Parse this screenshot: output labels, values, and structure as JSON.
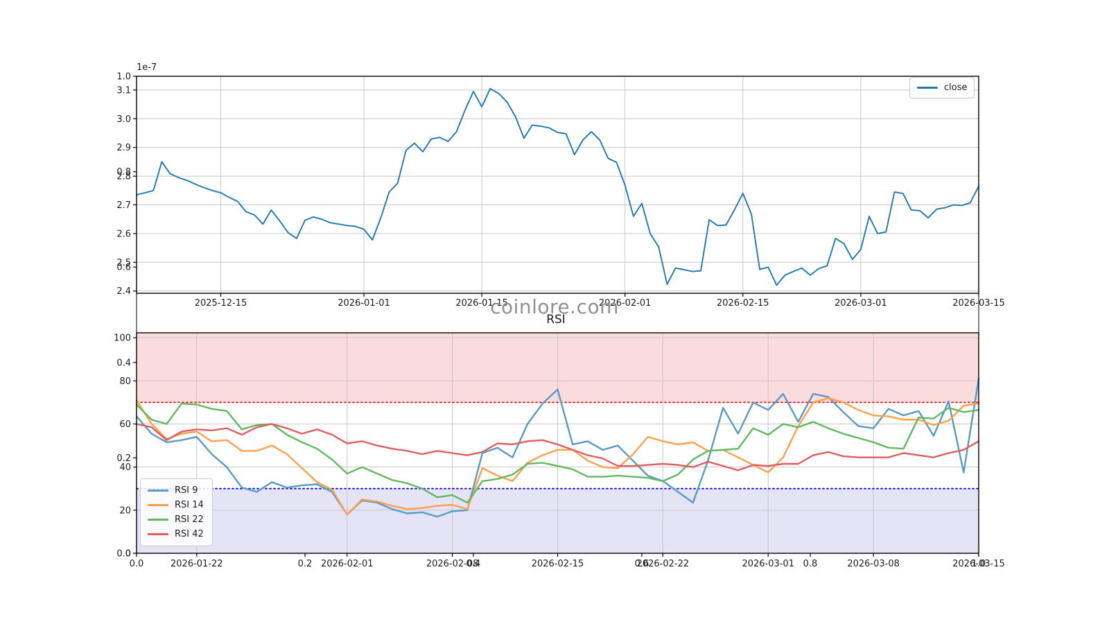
{
  "watermark": "coinlore.com",
  "overlay_axis": {
    "x_ticks": [
      "0.0",
      "0.2",
      "0.4",
      "0.6",
      "0.8",
      "1.0"
    ],
    "y_ticks": [
      "1.0",
      "0.8",
      "0.6",
      "0.4",
      "0.2",
      "0.0"
    ]
  },
  "colors": {
    "grid": "#c6c6c6",
    "spine": "#000000",
    "text": "#1a1a1a",
    "watermark": "#909090"
  },
  "chart_data": [
    {
      "id": "price",
      "type": "line",
      "y_offset_label": "1e-7",
      "legend_position": "upper right",
      "grid": true,
      "x_start_date": "2025-12-05",
      "x_ticks": [
        {
          "label": "2025-12-15",
          "day": 10
        },
        {
          "label": "2026-01-01",
          "day": 27
        },
        {
          "label": "2026-01-15",
          "day": 41
        },
        {
          "label": "2026-02-01",
          "day": 58
        },
        {
          "label": "2026-02-15",
          "day": 72
        },
        {
          "label": "2026-03-01",
          "day": 86
        },
        {
          "label": "2026-03-15",
          "day": 100
        }
      ],
      "y_ticks": [
        "2.4",
        "2.5",
        "2.6",
        "2.7",
        "2.8",
        "2.9",
        "3.0",
        "3.1"
      ],
      "ylim": [
        2.392,
        3.148
      ],
      "series": [
        {
          "name": "close",
          "color": "#1f77b4",
          "values": [
            2.735,
            2.742,
            2.75,
            2.85,
            2.808,
            2.795,
            2.785,
            2.772,
            2.76,
            2.75,
            2.742,
            2.726,
            2.712,
            2.676,
            2.665,
            2.633,
            2.682,
            2.644,
            2.603,
            2.583,
            2.646,
            2.658,
            2.65,
            2.638,
            2.633,
            2.628,
            2.625,
            2.615,
            2.578,
            2.655,
            2.745,
            2.775,
            2.89,
            2.915,
            2.885,
            2.93,
            2.935,
            2.921,
            2.955,
            3.03,
            3.095,
            3.042,
            3.105,
            3.088,
            3.058,
            3.007,
            2.932,
            2.978,
            2.974,
            2.968,
            2.952,
            2.948,
            2.875,
            2.926,
            2.955,
            2.926,
            2.862,
            2.848,
            2.768,
            2.66,
            2.705,
            2.6,
            2.553,
            2.423,
            2.48,
            2.474,
            2.468,
            2.47,
            2.648,
            2.628,
            2.63,
            2.683,
            2.74,
            2.668,
            2.475,
            2.483,
            2.42,
            2.455,
            2.468,
            2.48,
            2.455,
            2.478,
            2.488,
            2.583,
            2.565,
            2.51,
            2.545,
            2.66,
            2.6,
            2.606,
            2.745,
            2.74,
            2.682,
            2.68,
            2.655,
            2.685,
            2.69,
            2.7,
            2.698,
            2.707,
            2.765
          ]
        }
      ]
    },
    {
      "id": "rsi",
      "type": "line",
      "title": "RSI",
      "legend_position": "lower left",
      "grid": true,
      "x_start_date": "2026-01-18",
      "x_ticks": [
        {
          "label": "2026-01-22",
          "day": 4
        },
        {
          "label": "2026-02-01",
          "day": 14
        },
        {
          "label": "2026-02-08",
          "day": 21
        },
        {
          "label": "2026-02-15",
          "day": 28
        },
        {
          "label": "2026-02-22",
          "day": 35
        },
        {
          "label": "2026-03-01",
          "day": 42
        },
        {
          "label": "2026-03-08",
          "day": 49
        },
        {
          "label": "2026-03-15",
          "day": 56
        }
      ],
      "y_ticks": [
        "0",
        "20",
        "40",
        "60",
        "80",
        "100"
      ],
      "ylim": [
        0,
        102.3
      ],
      "overbought_line": {
        "value": 70,
        "color": "#ff0000",
        "style": "dotted"
      },
      "oversold_line": {
        "value": 30,
        "color": "#0000dd",
        "style": "dotted"
      },
      "overbought_band": {
        "from": 70,
        "to": 102.3,
        "color": "#fbdcdc"
      },
      "oversold_band": {
        "from": 0,
        "to": 30,
        "color": "#e4e4f6"
      },
      "series": [
        {
          "name": "RSI 9",
          "color": "#5799c7",
          "values": [
            63.5,
            55.5,
            51.5,
            52.5,
            54,
            46,
            40,
            30.5,
            28.5,
            33,
            30.5,
            31.5,
            32,
            28.5,
            18,
            24.5,
            23.5,
            20.5,
            18.5,
            19,
            17,
            19.5,
            20,
            46.5,
            49,
            44.5,
            60,
            69.5,
            76,
            50.5,
            52,
            48,
            50,
            43,
            36,
            33.5,
            28.5,
            23.5,
            43,
            67.5,
            55.5,
            70,
            66.5,
            74,
            61,
            74,
            72.5,
            65.5,
            59,
            58,
            67,
            64,
            66,
            54.5,
            70.5,
            37.5,
            81
          ]
        },
        {
          "name": "RSI 14",
          "color": "#ff9f4a",
          "values": [
            71,
            60,
            53,
            55.5,
            56.5,
            52,
            52.5,
            47.5,
            47.5,
            50,
            46,
            39.5,
            33,
            29.5,
            18,
            25,
            24,
            22,
            20.5,
            21,
            22,
            22.5,
            20.5,
            39.5,
            36,
            33.5,
            42,
            45.5,
            48,
            48,
            43,
            40,
            39.5,
            45.8,
            54,
            52,
            50.5,
            51.5,
            47.5,
            48,
            44.5,
            41,
            37.5,
            44.5,
            59,
            70,
            72,
            70,
            66.5,
            64,
            63.5,
            62,
            62,
            59.5,
            61.5,
            68.5,
            69.5
          ]
        },
        {
          "name": "RSI 22",
          "color": "#61b861",
          "values": [
            69,
            62,
            60,
            69.5,
            69,
            67,
            66,
            57.5,
            59.5,
            60,
            55,
            51.5,
            48.5,
            43.5,
            37,
            40,
            37,
            34,
            32.5,
            30,
            26,
            27,
            23.5,
            33.5,
            34.5,
            36.5,
            41.5,
            42,
            40.5,
            39,
            35.5,
            35.5,
            36,
            35.5,
            35,
            33.5,
            36.5,
            43.5,
            47.5,
            48,
            48.5,
            58,
            55,
            60,
            58.5,
            61,
            58,
            55.5,
            53.5,
            51.5,
            49,
            48.5,
            63,
            62.5,
            67.5,
            65.5,
            66.5
          ]
        },
        {
          "name": "RSI 42",
          "color": "#e05d5e",
          "values": [
            60,
            58.5,
            52.5,
            56.5,
            57.5,
            57,
            58,
            55,
            58.5,
            60,
            58,
            55.5,
            57.5,
            55,
            51,
            52,
            50,
            48.5,
            47.5,
            46,
            47.5,
            46.5,
            45.5,
            47,
            51,
            50.5,
            52,
            52.5,
            50.5,
            48,
            45.5,
            44,
            40.5,
            40.5,
            41,
            41.5,
            41,
            40,
            42.5,
            40.5,
            38.5,
            41,
            40.5,
            41.5,
            41.5,
            45.5,
            47,
            45,
            44.5,
            44.5,
            44.5,
            46.5,
            45.5,
            44.5,
            46.5,
            48,
            52
          ]
        }
      ]
    }
  ]
}
